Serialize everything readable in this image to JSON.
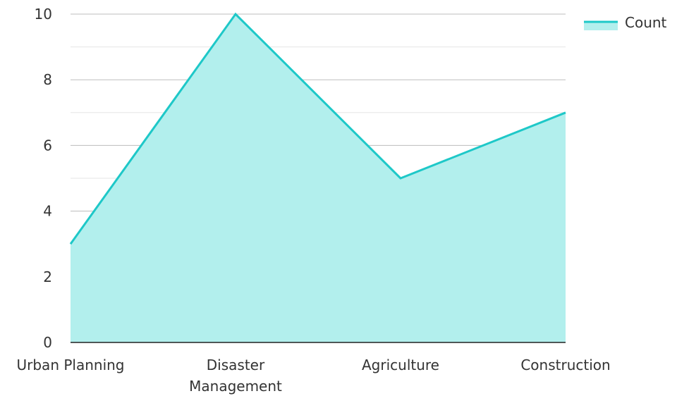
{
  "chart_data": {
    "type": "area",
    "categories": [
      "Urban Planning",
      "Disaster Management",
      "Agriculture",
      "Construction"
    ],
    "category_lines": [
      [
        "Urban Planning"
      ],
      [
        "Disaster",
        "Management"
      ],
      [
        "Agriculture"
      ],
      [
        "Construction"
      ]
    ],
    "series": [
      {
        "name": "Count",
        "values": [
          3,
          10,
          5,
          7
        ]
      }
    ],
    "title": "",
    "xlabel": "",
    "ylabel": "",
    "ylim": [
      0,
      10
    ],
    "y_ticks": [
      "0",
      "2",
      "4",
      "6",
      "8",
      "10"
    ],
    "grid": true,
    "legend": "top-right",
    "colors": {
      "line": "#1ec8c8",
      "fill": "#b2efed",
      "grid_major": "#bdbdbd",
      "grid_minor": "#e6e6e6",
      "axis": "#222222"
    }
  }
}
